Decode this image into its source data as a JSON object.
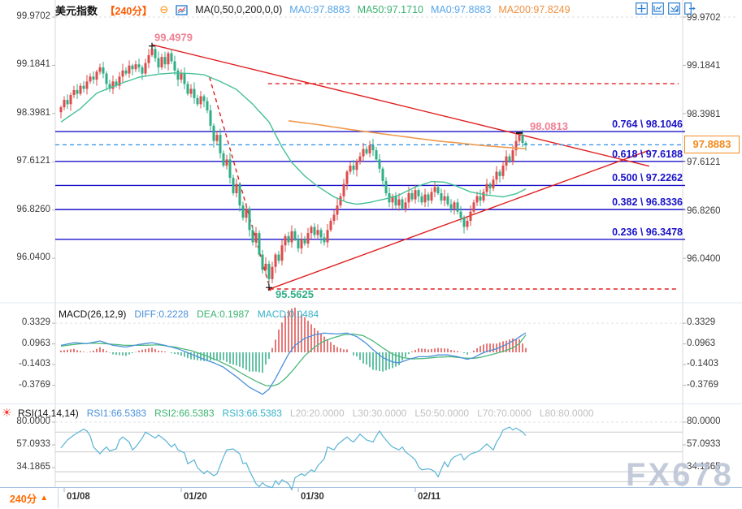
{
  "header": {
    "title": "美元指数",
    "interval": "【240分】",
    "collapse_glyph": "⊖",
    "ma_settings": "MA(0,50,0,200,0,0)",
    "ma_values": [
      "MA0:97.8883",
      "MA50:97.1710",
      "MA0:97.8883",
      "MA200:97.8249"
    ]
  },
  "toolbar": {
    "icons": [
      "crosshair-move-icon",
      "chart-scale-left-icon",
      "chart-scale-right-icon",
      "collapse-panel-icon"
    ]
  },
  "main_panel": {
    "y_labels": [
      "99.9702",
      "99.1841",
      "98.3981",
      "97.6121",
      "96.8260",
      "96.0400"
    ]
  },
  "macd_panel": {
    "title": "MACD(26,12,9)",
    "diff_label": "DIFF:0.2228",
    "dea_label": "DEA:0.1987",
    "macd_label": "MACD:0.0484",
    "y_labels": [
      "0.3329",
      "0.0963",
      "-0.1403",
      "-0.3769"
    ]
  },
  "rsi_panel": {
    "title": "RSI(14,14,14)",
    "rsi1_label": "RSI1:66.5383",
    "rsi2_label": "RSI2:66.5383",
    "rsi3_label": "RSI3:66.5383",
    "levels_labels": [
      "L20:20.0000",
      "L30:30.0000",
      "L50:50.0000",
      "L70:70.0000",
      "L80:80.0000"
    ],
    "y_labels": [
      "80.0000",
      "57.0933",
      "34.1865"
    ]
  },
  "footer": {
    "interval_label": "240分",
    "arrow_glyph": "▲",
    "x_dates": [
      {
        "label": "01/08",
        "index": 1
      },
      {
        "label": "01/20",
        "index": 37
      },
      {
        "label": "01/30",
        "index": 73
      },
      {
        "label": "02/11",
        "index": 109
      }
    ]
  },
  "watermark": "FX678",
  "colors": {
    "up": "#dd4b4b",
    "down": "#2fae85",
    "ma50": "#45c096",
    "ma200": "#f09a4e",
    "fib": "#1a12c8",
    "trend_red": "#e02020",
    "current_blue": "#2b8fe8",
    "diff_blue": "#4a90d9",
    "dea_green": "#4cb87a",
    "rsi_line": "#5ab4d6",
    "pink_label": "#ef7f92",
    "teal_label": "#2fae85",
    "tag_orange": "#f28a1e"
  },
  "chart_data": [
    {
      "type": "candlestick",
      "title": "美元指数 240分",
      "ylim": [
        96.04,
        99.9702
      ],
      "y_ticks": [
        99.9702,
        99.1841,
        98.3981,
        97.6121,
        96.826,
        96.04
      ],
      "closes": [
        98.5,
        98.62,
        98.55,
        98.7,
        98.78,
        98.72,
        98.85,
        98.8,
        98.92,
        99.0,
        98.95,
        99.08,
        99.15,
        99.05,
        98.88,
        98.8,
        98.92,
        98.85,
        99.0,
        99.1,
        99.05,
        99.18,
        99.12,
        99.2,
        99.15,
        99.05,
        99.22,
        99.35,
        99.45,
        99.3,
        99.15,
        99.32,
        99.2,
        99.38,
        99.25,
        99.1,
        98.95,
        99.05,
        98.88,
        98.72,
        98.8,
        98.65,
        98.55,
        98.68,
        98.6,
        98.45,
        98.2,
        97.95,
        98.05,
        97.75,
        97.55,
        97.65,
        97.35,
        97.1,
        97.25,
        96.9,
        96.7,
        96.85,
        96.5,
        96.3,
        96.45,
        96.1,
        95.85,
        95.95,
        95.7,
        95.9,
        96.1,
        96.0,
        96.25,
        96.4,
        96.3,
        96.48,
        96.35,
        96.2,
        96.35,
        96.28,
        96.45,
        96.55,
        96.42,
        96.5,
        96.38,
        96.3,
        96.5,
        96.65,
        96.75,
        96.9,
        97.05,
        97.25,
        97.45,
        97.55,
        97.48,
        97.62,
        97.7,
        97.82,
        97.75,
        97.88,
        97.8,
        97.65,
        97.5,
        97.3,
        97.1,
        96.95,
        97.05,
        96.9,
        97.0,
        96.85,
        96.95,
        97.1,
        97.0,
        97.15,
        97.05,
        96.95,
        97.08,
        96.98,
        97.12,
        97.2,
        97.1,
        96.98,
        97.05,
        96.92,
        96.85,
        96.95,
        96.8,
        96.7,
        96.55,
        96.65,
        96.8,
        96.95,
        97.05,
        96.98,
        97.12,
        97.25,
        97.18,
        97.32,
        97.45,
        97.38,
        97.55,
        97.7,
        97.62,
        97.8,
        97.95,
        98.05,
        97.92,
        97.89
      ],
      "key_points": {
        "peak": {
          "index": 28,
          "price": 99.4979,
          "label": "99.4979"
        },
        "trough": {
          "index": 64,
          "price": 95.5625,
          "label": "95.5625"
        },
        "swing_high": {
          "index": 141,
          "price": 98.0813,
          "label": "98.0813"
        },
        "last_price": {
          "value": 97.8883,
          "label": "97.8883"
        }
      },
      "fib_levels": [
        {
          "ratio": 0.764,
          "price": 98.1046,
          "label": "0.764 \\ 98.1046"
        },
        {
          "ratio": 0.618,
          "price": 97.6188,
          "label": "0.618 \\ 97.6188"
        },
        {
          "ratio": 0.5,
          "price": 97.2262,
          "label": "0.500 \\ 97.2262"
        },
        {
          "ratio": 0.382,
          "price": 96.8336,
          "label": "0.382 \\ 96.8336"
        },
        {
          "ratio": 0.236,
          "price": 96.3478,
          "label": "0.236 \\ 96.3478"
        }
      ],
      "trendlines": [
        {
          "x1": 28,
          "p1": 99.52,
          "x2": 181,
          "p2": 97.54,
          "dash": false
        },
        {
          "x1": 63.7,
          "p1": 95.53,
          "x2": 181,
          "p2": 97.8,
          "dash": false
        },
        {
          "x1": 45.7,
          "p1": 98.99,
          "x2": 64.5,
          "p2": 95.51,
          "dash": true
        },
        {
          "x1": 63.7,
          "p1": 98.885,
          "x2": 190,
          "p2": 98.885,
          "dash": true
        },
        {
          "x1": 64.2,
          "p1": 95.539,
          "x2": 190,
          "p2": 95.539,
          "dash": true
        }
      ],
      "ma50_keypoints": [
        [
          0,
          98.26
        ],
        [
          6,
          98.48
        ],
        [
          11,
          98.73
        ],
        [
          18,
          98.88
        ],
        [
          24,
          98.99
        ],
        [
          30,
          99.04
        ],
        [
          35,
          99.06
        ],
        [
          40,
          99.05
        ],
        [
          44,
          99.03
        ],
        [
          49,
          98.92
        ],
        [
          54,
          98.79
        ],
        [
          59,
          98.55
        ],
        [
          64,
          98.26
        ],
        [
          68,
          97.85
        ],
        [
          71,
          97.6
        ],
        [
          75,
          97.38
        ],
        [
          79,
          97.21
        ],
        [
          84,
          97.04
        ],
        [
          88,
          96.95
        ],
        [
          91,
          96.92
        ],
        [
          95,
          96.95
        ],
        [
          100,
          97.01
        ],
        [
          104,
          97.07
        ],
        [
          109,
          97.2
        ],
        [
          114,
          97.29
        ],
        [
          118,
          97.28
        ],
        [
          121,
          97.23
        ],
        [
          126,
          97.12
        ],
        [
          131,
          97.07
        ],
        [
          136,
          97.04
        ],
        [
          140,
          97.09
        ],
        [
          143,
          97.171
        ]
      ],
      "ma200_keypoints": [
        [
          70,
          98.28
        ],
        [
          80,
          98.21
        ],
        [
          90,
          98.13
        ],
        [
          100,
          98.06
        ],
        [
          110,
          97.99
        ],
        [
          116,
          97.95
        ],
        [
          122,
          97.92
        ],
        [
          129,
          97.88
        ],
        [
          136,
          97.85
        ],
        [
          143,
          97.825
        ]
      ]
    },
    {
      "type": "line+histogram",
      "name": "MACD",
      "params": "(26,12,9)",
      "y_ticks": [
        0.3329,
        0.0963,
        -0.1403,
        -0.3769
      ],
      "current": {
        "diff": 0.2228,
        "dea": 0.1987,
        "macd": 0.0484
      },
      "histogram_rule": "2*(DIFF-DEA)",
      "diff_keypoints": [
        [
          0,
          0.08
        ],
        [
          4,
          0.11
        ],
        [
          8,
          0.1
        ],
        [
          12,
          0.13
        ],
        [
          16,
          0.08
        ],
        [
          20,
          0.06
        ],
        [
          24,
          0.09
        ],
        [
          28,
          0.11
        ],
        [
          32,
          0.08
        ],
        [
          36,
          0.04
        ],
        [
          40,
          -0.02
        ],
        [
          44,
          -0.08
        ],
        [
          47,
          -0.12
        ],
        [
          50,
          -0.17
        ],
        [
          54,
          -0.28
        ],
        [
          58,
          -0.4
        ],
        [
          60,
          -0.44
        ],
        [
          62,
          -0.48
        ],
        [
          64,
          -0.42
        ],
        [
          66,
          -0.3
        ],
        [
          68,
          -0.16
        ],
        [
          70,
          -0.02
        ],
        [
          72,
          0.08
        ],
        [
          75,
          0.16
        ],
        [
          78,
          0.2
        ],
        [
          81,
          0.22
        ],
        [
          85,
          0.21
        ],
        [
          88,
          0.22
        ],
        [
          91,
          0.18
        ],
        [
          94,
          0.1
        ],
        [
          96,
          0.03
        ],
        [
          99,
          -0.06
        ],
        [
          102,
          -0.11
        ],
        [
          104,
          -0.12
        ],
        [
          107,
          -0.08
        ],
        [
          110,
          -0.05
        ],
        [
          113,
          -0.05
        ],
        [
          116,
          -0.03
        ],
        [
          119,
          -0.03
        ],
        [
          122,
          -0.05
        ],
        [
          125,
          -0.08
        ],
        [
          127,
          -0.06
        ],
        [
          129,
          -0.02
        ],
        [
          131,
          0.01
        ],
        [
          134,
          0.04
        ],
        [
          137,
          0.09
        ],
        [
          140,
          0.15
        ],
        [
          142,
          0.2
        ],
        [
          143,
          0.2228
        ]
      ],
      "dea_keypoints": [
        [
          0,
          0.07
        ],
        [
          5,
          0.095
        ],
        [
          10,
          0.105
        ],
        [
          15,
          0.095
        ],
        [
          20,
          0.08
        ],
        [
          25,
          0.08
        ],
        [
          30,
          0.085
        ],
        [
          35,
          0.06
        ],
        [
          40,
          0.02
        ],
        [
          44,
          -0.03
        ],
        [
          48,
          -0.09
        ],
        [
          52,
          -0.16
        ],
        [
          56,
          -0.25
        ],
        [
          60,
          -0.33
        ],
        [
          63,
          -0.38
        ],
        [
          65,
          -0.385
        ],
        [
          67,
          -0.36
        ],
        [
          69,
          -0.3
        ],
        [
          71,
          -0.22
        ],
        [
          73,
          -0.13
        ],
        [
          75,
          -0.04
        ],
        [
          78,
          0.06
        ],
        [
          81,
          0.13
        ],
        [
          84,
          0.17
        ],
        [
          87,
          0.2
        ],
        [
          90,
          0.21
        ],
        [
          93,
          0.19
        ],
        [
          96,
          0.13
        ],
        [
          99,
          0.05
        ],
        [
          102,
          -0.02
        ],
        [
          105,
          -0.06
        ],
        [
          108,
          -0.075
        ],
        [
          112,
          -0.07
        ],
        [
          116,
          -0.055
        ],
        [
          120,
          -0.05
        ],
        [
          124,
          -0.065
        ],
        [
          127,
          -0.07
        ],
        [
          130,
          -0.05
        ],
        [
          133,
          -0.02
        ],
        [
          136,
          0.01
        ],
        [
          139,
          0.05
        ],
        [
          141,
          0.1
        ],
        [
          143,
          0.1987
        ]
      ]
    },
    {
      "type": "line",
      "name": "RSI",
      "params": "(14,14,14)",
      "y_ticks": [
        80.0,
        57.0933,
        34.1865
      ],
      "levels": [
        20,
        30,
        50,
        70,
        80
      ],
      "current": 66.5383,
      "points": [
        [
          0,
          54
        ],
        [
          2,
          62
        ],
        [
          4,
          67
        ],
        [
          6,
          71
        ],
        [
          7,
          73
        ],
        [
          8,
          71
        ],
        [
          9,
          66
        ],
        [
          10,
          55
        ],
        [
          12,
          48
        ],
        [
          13,
          52
        ],
        [
          14,
          55
        ],
        [
          15,
          51
        ],
        [
          17,
          53
        ],
        [
          18,
          62
        ],
        [
          19,
          65
        ],
        [
          21,
          60
        ],
        [
          22,
          52
        ],
        [
          23,
          55
        ],
        [
          25,
          64
        ],
        [
          26,
          70
        ],
        [
          27,
          68
        ],
        [
          29,
          64
        ],
        [
          30,
          67
        ],
        [
          32,
          62
        ],
        [
          34,
          55
        ],
        [
          35,
          58
        ],
        [
          36,
          52
        ],
        [
          38,
          49
        ],
        [
          39,
          38
        ],
        [
          41,
          42
        ],
        [
          42,
          34
        ],
        [
          44,
          28
        ],
        [
          45,
          31
        ],
        [
          47,
          26
        ],
        [
          48,
          28
        ],
        [
          50,
          45
        ],
        [
          51,
          52
        ],
        [
          53,
          53
        ],
        [
          55,
          48
        ],
        [
          56,
          38
        ],
        [
          57,
          39
        ],
        [
          58,
          31
        ],
        [
          60,
          18
        ],
        [
          61,
          15
        ],
        [
          62,
          19
        ],
        [
          63,
          16
        ],
        [
          65,
          14
        ],
        [
          66,
          21
        ],
        [
          67,
          17
        ],
        [
          68,
          22
        ],
        [
          70,
          18
        ],
        [
          71,
          12
        ],
        [
          72,
          24
        ],
        [
          74,
          28
        ],
        [
          75,
          26
        ],
        [
          77,
          32
        ],
        [
          78,
          30
        ],
        [
          79,
          36
        ],
        [
          81,
          43
        ],
        [
          82,
          55
        ],
        [
          84,
          52
        ],
        [
          85,
          57
        ],
        [
          86,
          60
        ],
        [
          88,
          65
        ],
        [
          89,
          62
        ],
        [
          90,
          60
        ],
        [
          92,
          68
        ],
        [
          93,
          65
        ],
        [
          94,
          62
        ],
        [
          96,
          60
        ],
        [
          97,
          66
        ],
        [
          98,
          71
        ],
        [
          99,
          66
        ],
        [
          101,
          58
        ],
        [
          102,
          55
        ],
        [
          104,
          52
        ],
        [
          105,
          55
        ],
        [
          106,
          50
        ],
        [
          108,
          45
        ],
        [
          109,
          42
        ],
        [
          110,
          35
        ],
        [
          111,
          32
        ],
        [
          113,
          33
        ],
        [
          114,
          32
        ],
        [
          115,
          30
        ],
        [
          116,
          25
        ],
        [
          118,
          40
        ],
        [
          119,
          35
        ],
        [
          120,
          42
        ],
        [
          121,
          45
        ],
        [
          123,
          48
        ],
        [
          124,
          42
        ],
        [
          125,
          45
        ],
        [
          126,
          48
        ],
        [
          128,
          50
        ],
        [
          129,
          52
        ],
        [
          130,
          55
        ],
        [
          131,
          58
        ],
        [
          133,
          52
        ],
        [
          134,
          60
        ],
        [
          135,
          65
        ],
        [
          136,
          72
        ],
        [
          138,
          75
        ],
        [
          139,
          72
        ],
        [
          140,
          74
        ],
        [
          142,
          70
        ],
        [
          143,
          66.5
        ]
      ]
    }
  ]
}
